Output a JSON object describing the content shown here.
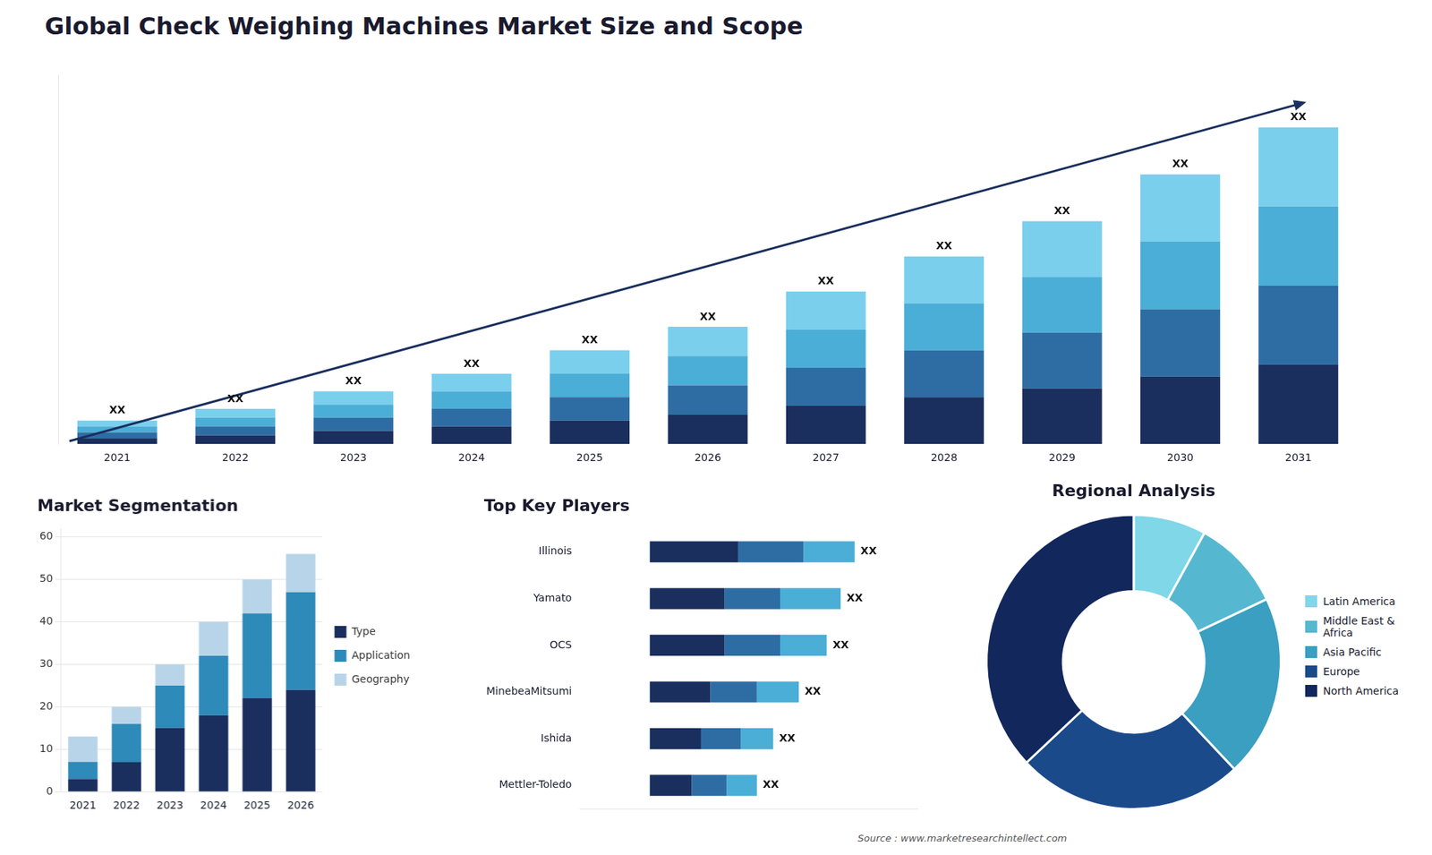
{
  "title": "Global Check Weighing Machines Market Size and Scope",
  "annotations": [
    {
      "text": "Source : www.marketresearchintellect.com"
    }
  ],
  "chart_data": [
    {
      "type": "bar",
      "stacked": true,
      "categories": [
        "2021",
        "2022",
        "2023",
        "2024",
        "2025",
        "2026",
        "2027",
        "2028",
        "2029",
        "2030",
        "2031"
      ],
      "series": [
        {
          "color": "#1a2f5e",
          "values": [
            2,
            3,
            4.5,
            6,
            8,
            10,
            13,
            16,
            19,
            23,
            27
          ]
        },
        {
          "color": "#2e6da4",
          "values": [
            2,
            3,
            4.5,
            6,
            8,
            10,
            13,
            16,
            19,
            23,
            27
          ]
        },
        {
          "color": "#4baed6",
          "values": [
            2,
            3,
            4.5,
            6,
            8,
            10,
            13,
            16,
            19,
            23,
            27
          ]
        },
        {
          "color": "#7acfed",
          "values": [
            2,
            3,
            4.5,
            6,
            8,
            10,
            13,
            16,
            19,
            23,
            27
          ]
        }
      ],
      "ylim": [
        0,
        126
      ],
      "grid": false,
      "tick_labels": "x",
      "annotations": [
        {
          "type": "arrow",
          "color": "#1a2f5e"
        },
        {
          "category": "2021",
          "text": "XX"
        },
        {
          "category": "2022",
          "text": "XX"
        },
        {
          "category": "2023",
          "text": "XX"
        },
        {
          "category": "2024",
          "text": "XX"
        },
        {
          "category": "2025",
          "text": "XX"
        },
        {
          "category": "2026",
          "text": "XX"
        },
        {
          "category": "2027",
          "text": "XX"
        },
        {
          "category": "2028",
          "text": "XX"
        },
        {
          "category": "2029",
          "text": "XX"
        },
        {
          "category": "2030",
          "text": "XX"
        },
        {
          "category": "2031",
          "text": "XX"
        }
      ]
    },
    {
      "type": "bar",
      "stacked": true,
      "title": "Market Segmentation",
      "categories": [
        "2021",
        "2022",
        "2023",
        "2024",
        "2025",
        "2026"
      ],
      "series": [
        {
          "name": "Type",
          "color": "#1a2f5e",
          "values": [
            3,
            7,
            15,
            18,
            22,
            24
          ]
        },
        {
          "name": "Application",
          "color": "#2e8ab8",
          "values": [
            4,
            9,
            10,
            14,
            20,
            23
          ]
        },
        {
          "name": "Geography",
          "color": "#b8d4e8",
          "values": [
            6,
            4,
            5,
            8,
            8,
            9
          ]
        }
      ],
      "ylim": [
        0,
        62
      ],
      "yticks": [
        0,
        10,
        20,
        30,
        40,
        50,
        60
      ],
      "grid": true,
      "legend": "right"
    },
    {
      "type": "bar",
      "stacked": true,
      "orientation": "horizontal",
      "title": "Top Key Players",
      "categories": [
        "Illinois",
        "Yamato",
        "OCS",
        "MinebeaMitsumi",
        "Ishida",
        "Mettler-Toledo"
      ],
      "series": [
        {
          "color": "#1a2f5e",
          "values": [
            0.38,
            0.32,
            0.32,
            0.26,
            0.22,
            0.18
          ]
        },
        {
          "color": "#2e6da4",
          "values": [
            0.28,
            0.24,
            0.24,
            0.2,
            0.17,
            0.15
          ]
        },
        {
          "color": "#4baed6",
          "values": [
            0.22,
            0.26,
            0.2,
            0.18,
            0.14,
            0.13
          ]
        }
      ],
      "xlim": [
        -0.3,
        1.15
      ],
      "grid": false,
      "tick_labels": "y",
      "annotations": [
        {
          "category": "Illinois",
          "text": "XX"
        },
        {
          "category": "Yamato",
          "text": "XX"
        },
        {
          "category": "OCS",
          "text": "XX"
        },
        {
          "category": "MinebeaMitsumi",
          "text": "XX"
        },
        {
          "category": "Ishida",
          "text": "XX"
        },
        {
          "category": "Mettler-Toledo",
          "text": "XX"
        }
      ]
    },
    {
      "type": "doughnut",
      "title": "Regional Analysis",
      "categories": [
        "Latin America",
        "Middle East &\nAfrica",
        "Asia Pacific",
        "Europe",
        "North America"
      ],
      "values": [
        8,
        10,
        20,
        25,
        37
      ],
      "colors": [
        "#7fd7e8",
        "#55b8d0",
        "#3a9fc0",
        "#1a4a8a",
        "#12275c"
      ],
      "legend": "right"
    }
  ]
}
